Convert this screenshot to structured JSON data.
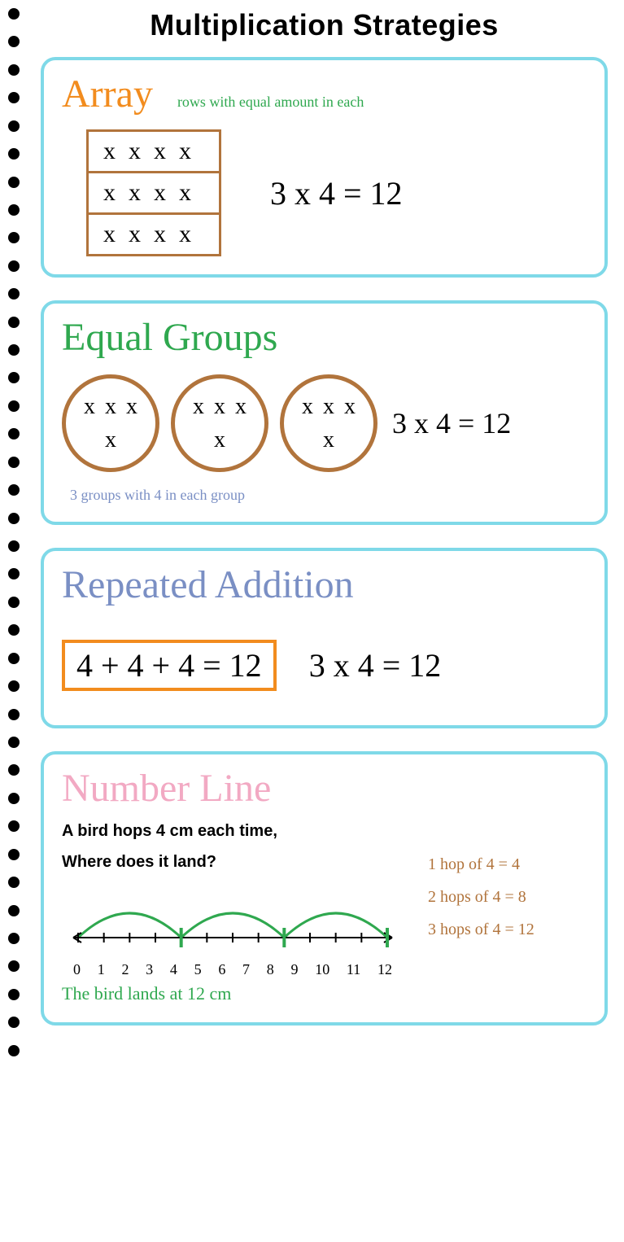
{
  "page_title": "Multiplication Strategies",
  "colors": {
    "card_border": "#7fd9e8",
    "orange": "#f28c1e",
    "green": "#2fa84f",
    "brown": "#b1743c",
    "blue": "#7a8fc4",
    "pink": "#f2a9c3",
    "black": "#000000"
  },
  "array": {
    "title": "Array",
    "title_color": "#f28c1e",
    "subtitle": "rows with equal amount in each",
    "subtitle_color": "#2fa84f",
    "rows": 3,
    "cols": 4,
    "cell_mark": "x",
    "row_border_color": "#b1743c",
    "equation": "3 x 4 = 12"
  },
  "equal_groups": {
    "title": "Equal Groups",
    "title_color": "#2fa84f",
    "groups": 3,
    "per_group": 4,
    "mark": "x",
    "circle_border_color": "#b1743c",
    "equation": "3 x 4 = 12",
    "caption": "3 groups with 4 in each group",
    "caption_color": "#7a8fc4"
  },
  "repeated_addition": {
    "title": "Repeated Addition",
    "title_color": "#7a8fc4",
    "boxed_expr": "4 + 4 + 4 = 12",
    "box_border_color": "#f28c1e",
    "equation": "3 x 4 = 12"
  },
  "number_line": {
    "title": "Number Line",
    "title_color": "#f2a9c3",
    "question_l1": "A bird hops 4 cm each time,",
    "question_l2": "Where does it land?",
    "min": 0,
    "max": 12,
    "tick_step": 1,
    "hop_size": 4,
    "hop_count": 3,
    "hop_landings": [
      4,
      8,
      12
    ],
    "line_color": "#000000",
    "hop_arc_color": "#2fa84f",
    "landing_tick_color": "#2fa84f",
    "tick_labels": [
      "0",
      "1",
      "2",
      "3",
      "4",
      "5",
      "6",
      "7",
      "8",
      "9",
      "10",
      "11",
      "12"
    ],
    "hops_text": [
      "1 hop of 4 = 4",
      "2 hops of 4 = 8",
      "3 hops of 4 = 12"
    ],
    "hops_text_color": "#b1743c",
    "answer": "The bird lands at 12 cm",
    "answer_color": "#2fa84f"
  }
}
